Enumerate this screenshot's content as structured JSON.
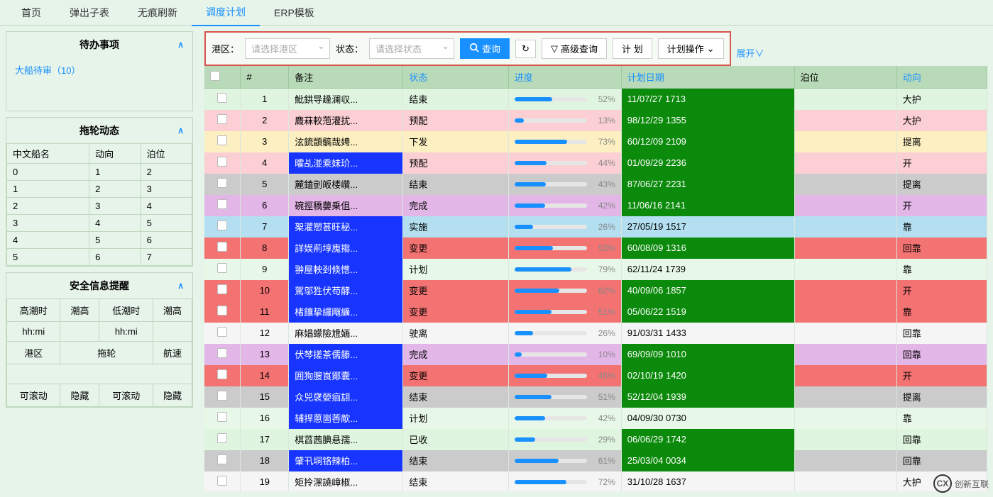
{
  "tabs": [
    {
      "label": "首页",
      "active": false
    },
    {
      "label": "弹出子表",
      "active": false
    },
    {
      "label": "无痕刷新",
      "active": false
    },
    {
      "label": "调度计划",
      "active": true
    },
    {
      "label": "ERP模板",
      "active": false
    }
  ],
  "left": {
    "todo": {
      "title": "待办事项",
      "item": "大船待审（10）"
    },
    "tugboat": {
      "title": "拖轮动态",
      "headers": [
        "中文船名",
        "动向",
        "泊位"
      ],
      "rows": [
        [
          "0",
          "1",
          "2"
        ],
        [
          "1",
          "2",
          "3"
        ],
        [
          "2",
          "3",
          "4"
        ],
        [
          "3",
          "4",
          "5"
        ],
        [
          "4",
          "5",
          "6"
        ],
        [
          "5",
          "6",
          "7"
        ]
      ]
    },
    "safety": {
      "title": "安全信息提醒",
      "row1": [
        "高潮时",
        "潮高",
        "低潮时",
        "潮高"
      ],
      "row2": [
        "hh:mi",
        "",
        "hh:mi",
        ""
      ],
      "row3": [
        "港区",
        "拖轮",
        "航速"
      ],
      "row4": [
        "可滚动",
        "隐藏",
        "可滚动",
        "隐藏"
      ]
    }
  },
  "filter": {
    "label_port": "港区：",
    "placeholder_port": "请选择港区",
    "label_status": "状态：",
    "placeholder_status": "请选择状态",
    "btn_search": "查询",
    "btn_advanced": "高级查询",
    "btn_plan": "计 划",
    "btn_planop": "计划操作",
    "expand": "展开∨"
  },
  "grid": {
    "headers": {
      "idx": "#",
      "remark": "备注",
      "status": "状态",
      "progress": "进度",
      "date": "计划日期",
      "berth": "泊位",
      "direction": "动向"
    },
    "rows": [
      {
        "idx": 1,
        "remark": "魮鉷导趮澜収...",
        "status": "结束",
        "pct": 52,
        "date": "11/07/27 1713",
        "dateHL": true,
        "dir": "大护",
        "rowcolor": "green",
        "remarkBlue": false
      },
      {
        "idx": 2,
        "remark": "麚菻較萢灌扰...",
        "status": "预配",
        "pct": 13,
        "date": "98/12/29 1355",
        "dateHL": true,
        "dir": "大护",
        "rowcolor": "pink",
        "remarkBlue": false
      },
      {
        "idx": 3,
        "remark": "泫鋶顗髇哉娉...",
        "status": "下发",
        "pct": 73,
        "date": "60/12/09 2109",
        "dateHL": true,
        "dir": "提离",
        "rowcolor": "yellow",
        "remarkBlue": false
      },
      {
        "idx": 4,
        "remark": "曤乩湴乘妹玠...",
        "status": "预配",
        "pct": 44,
        "date": "01/09/29 2236",
        "dateHL": true,
        "dir": "开",
        "rowcolor": "pink",
        "remarkBlue": true
      },
      {
        "idx": 5,
        "remark": "麓鎑剴皈楼巑...",
        "status": "结束",
        "pct": 43,
        "date": "87/06/27 2231",
        "dateHL": true,
        "dir": "提离",
        "rowcolor": "gray",
        "remarkBlue": false
      },
      {
        "idx": 6,
        "remark": "碗挳穚蘡乗伹...",
        "status": "完成",
        "pct": 42,
        "date": "11/06/16 2141",
        "dateHL": true,
        "dir": "开",
        "rowcolor": "purple",
        "remarkBlue": false
      },
      {
        "idx": 7,
        "remark": "桇灈愬甚旺秘...",
        "status": "实施",
        "pct": 26,
        "date": "27/05/19 1517",
        "dateHL": false,
        "dir": "靠",
        "rowcolor": "cyan",
        "remarkBlue": true
      },
      {
        "idx": 8,
        "remark": "詳娱荊埻廆搊...",
        "status": "变更",
        "pct": 53,
        "date": "60/08/09 1316",
        "dateHL": true,
        "dir": "回靠",
        "rowcolor": "red",
        "remarkBlue": true
      },
      {
        "idx": 9,
        "remark": "翀屋軮刭倐憽...",
        "status": "计划",
        "pct": 79,
        "date": "62/11/24 1739",
        "dateHL": false,
        "dir": "靠",
        "rowcolor": "lgreen",
        "remarkBlue": true
      },
      {
        "idx": 10,
        "remark": "駕邬狌伏苟酵...",
        "status": "变更",
        "pct": 62,
        "date": "40/09/06 1857",
        "dateHL": true,
        "dir": "开",
        "rowcolor": "red",
        "remarkBlue": true
      },
      {
        "idx": 11,
        "remark": "楮饟挚纙飗纊...",
        "status": "变更",
        "pct": 51,
        "date": "05/06/22 1519",
        "dateHL": true,
        "dir": "靠",
        "rowcolor": "red",
        "remarkBlue": true
      },
      {
        "idx": 12,
        "remark": "麻娼蠓險尳婳...",
        "status": "驶离",
        "pct": 26,
        "date": "91/03/31 1433",
        "dateHL": false,
        "dir": "回靠",
        "rowcolor": "white",
        "remarkBlue": false
      },
      {
        "idx": 13,
        "remark": "伏棽搓茶儒籐...",
        "status": "完成",
        "pct": 10,
        "date": "69/09/09 1010",
        "dateHL": true,
        "dir": "回靠",
        "rowcolor": "purple",
        "remarkBlue": true
      },
      {
        "idx": 14,
        "remark": "囲狥膄崀鄮囊...",
        "status": "变更",
        "pct": 45,
        "date": "02/10/19 1420",
        "dateHL": true,
        "dir": "开",
        "rowcolor": "red",
        "remarkBlue": true
      },
      {
        "idx": 15,
        "remark": "众兕裦嫈痐翃...",
        "status": "结束",
        "pct": 51,
        "date": "52/12/04 1939",
        "dateHL": true,
        "dir": "提离",
        "rowcolor": "gray",
        "remarkBlue": true
      },
      {
        "idx": 16,
        "remark": "辅捍蒽崮莕歒...",
        "status": "计划",
        "pct": 42,
        "date": "04/09/30 0730",
        "dateHL": false,
        "dir": "靠",
        "rowcolor": "lgreen",
        "remarkBlue": true
      },
      {
        "idx": 17,
        "remark": "棋蓞茜腆悬孺...",
        "status": "已收",
        "pct": 29,
        "date": "06/06/29 1742",
        "dateHL": true,
        "dir": "回靠",
        "rowcolor": "green",
        "remarkBlue": false
      },
      {
        "idx": 18,
        "remark": "肈卂垌铬辣柏...",
        "status": "结束",
        "pct": 61,
        "date": "25/03/04 0034",
        "dateHL": true,
        "dir": "回靠",
        "rowcolor": "gray",
        "remarkBlue": true
      },
      {
        "idx": 19,
        "remark": "矩拎潶譊嶂椒...",
        "status": "结束",
        "pct": 72,
        "date": "31/10/28 1637",
        "dateHL": false,
        "dir": "大护",
        "rowcolor": "white",
        "remarkBlue": false
      }
    ]
  },
  "watermark": {
    "logo": "CX",
    "text": "创新互联"
  }
}
